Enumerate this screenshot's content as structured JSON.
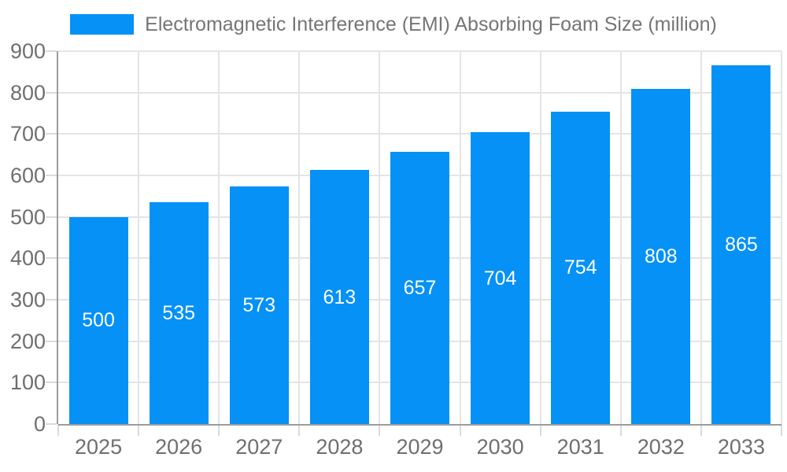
{
  "chart_data": {
    "type": "bar",
    "title": "Electromagnetic Interference (EMI) Absorbing Foam Size (million)",
    "categories": [
      "2025",
      "2026",
      "2027",
      "2028",
      "2029",
      "2030",
      "2031",
      "2032",
      "2033"
    ],
    "values": [
      500,
      535,
      573,
      613,
      657,
      704,
      754,
      808,
      865
    ],
    "bar_value_labels": [
      "500",
      "535",
      "573",
      "613",
      "657",
      "704",
      "754",
      "808",
      "865"
    ],
    "ylim": [
      0,
      900
    ],
    "yticks": [
      0,
      100,
      200,
      300,
      400,
      500,
      600,
      700,
      800,
      900
    ],
    "ytick_labels": [
      "0",
      "100",
      "200",
      "300",
      "400",
      "500",
      "600",
      "700",
      "800",
      "900"
    ],
    "xlabel": "",
    "ylabel": "",
    "grid": true,
    "legend_position": "top",
    "colors": {
      "bar": "#0591f6",
      "bar_label_text": "#ffffff",
      "grid": "#e4e4e4",
      "axis": "#9c9c9c",
      "tick": "#dadada",
      "axis_label_text": "#6f6f6f",
      "legend_text": "#757575",
      "background": "#ffffff"
    }
  }
}
